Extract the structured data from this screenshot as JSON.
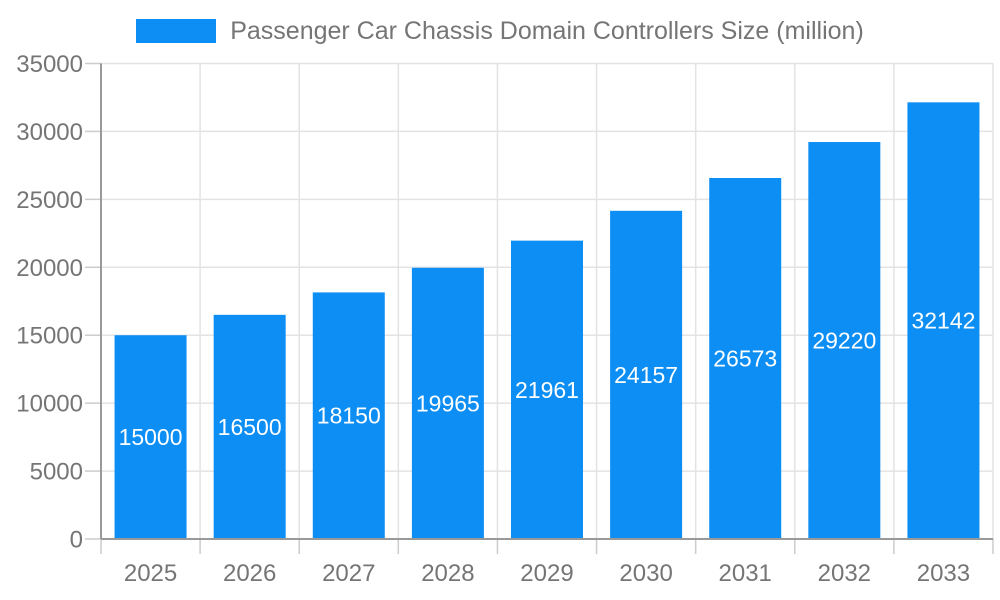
{
  "legend": {
    "position": "top",
    "label": "Passenger Car Chassis Domain Controllers Size (million)"
  },
  "chart_data": {
    "type": "bar",
    "title": "Passenger Car Chassis Domain Controllers Size (million)",
    "categories": [
      "2025",
      "2026",
      "2027",
      "2028",
      "2029",
      "2030",
      "2031",
      "2032",
      "2033"
    ],
    "values": [
      15000,
      16500,
      18150,
      19965,
      21961,
      24157,
      26573,
      29220,
      32142
    ],
    "series": [
      {
        "name": "Passenger Car Chassis Domain Controllers Size (million)",
        "values": [
          15000,
          16500,
          18150,
          19965,
          21961,
          24157,
          26573,
          29220,
          32142
        ]
      }
    ],
    "bar_labels_shown": true,
    "xlabel": "",
    "ylabel": "",
    "ylim": [
      0,
      35000
    ],
    "yticks": [
      0,
      5000,
      10000,
      15000,
      20000,
      25000,
      30000,
      35000
    ],
    "grid": true,
    "legend_position": "top",
    "colors": {
      "bar": "#0d8ef4",
      "bar_label": "#ffffff",
      "grid": "#e3e3e3",
      "axis": "#999999",
      "tick": "#cccccc",
      "tick_label": "#757575",
      "background": "#ffffff"
    }
  }
}
